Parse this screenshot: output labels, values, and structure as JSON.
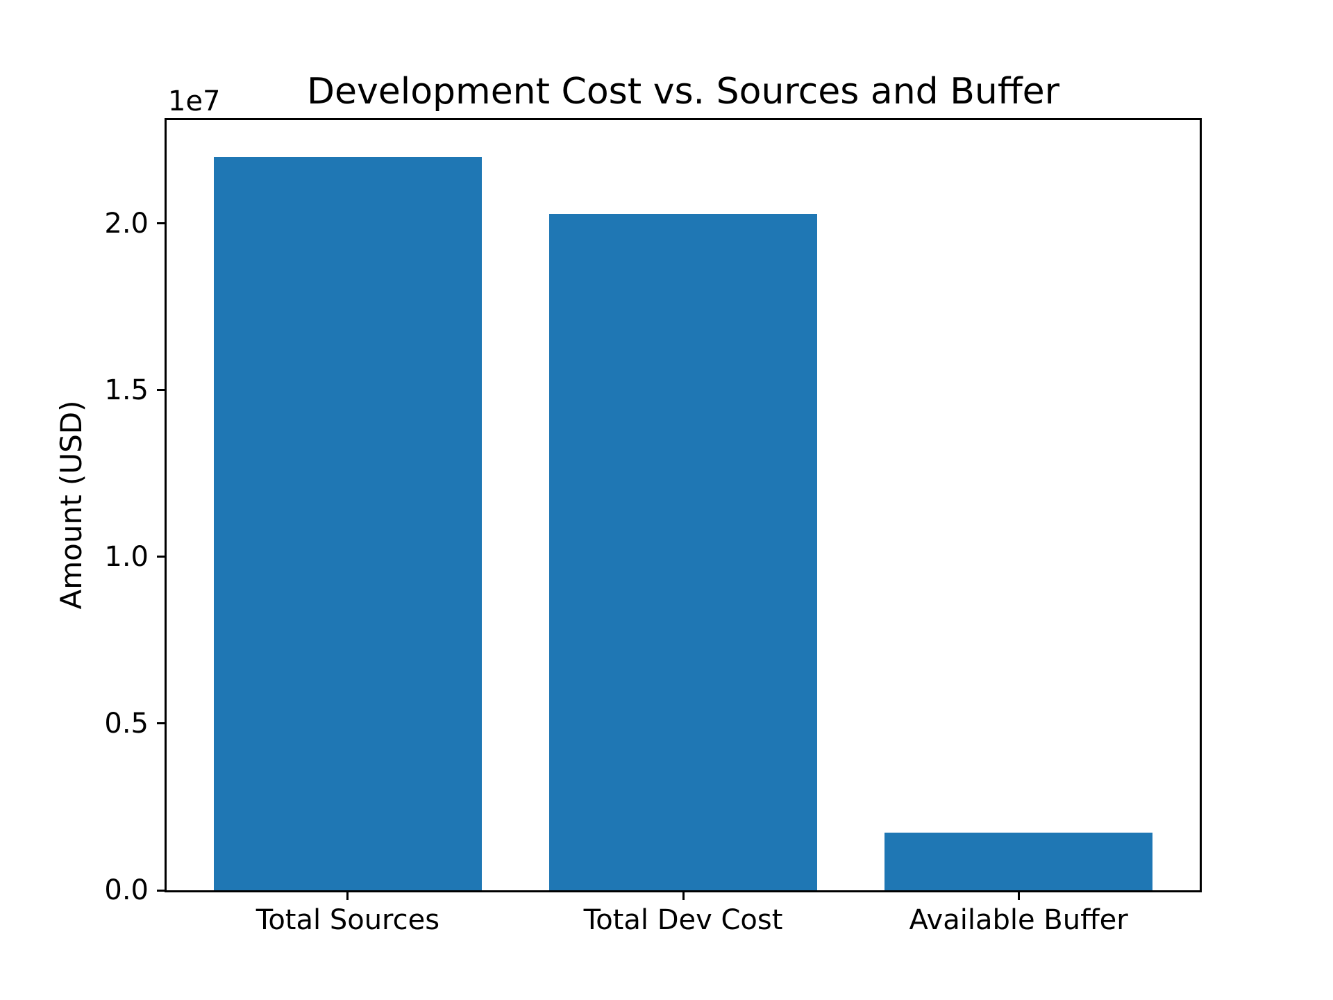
{
  "chart_data": {
    "type": "bar",
    "title": "Development Cost vs. Sources and Buffer",
    "ylabel": "Amount (USD)",
    "xlabel": "",
    "offset_text": "1e7",
    "categories": [
      "Total Sources",
      "Total Dev Cost",
      "Available Buffer"
    ],
    "values": [
      22000000,
      20280000,
      1720000
    ],
    "bar_color": "#1f77b4",
    "ylim": [
      0,
      23100000
    ],
    "yticks": [
      0,
      5000000,
      10000000,
      15000000,
      20000000
    ],
    "ytick_labels": [
      "0.0",
      "0.5",
      "1.0",
      "1.5",
      "2.0"
    ],
    "grid": false,
    "legend_position": "none"
  }
}
